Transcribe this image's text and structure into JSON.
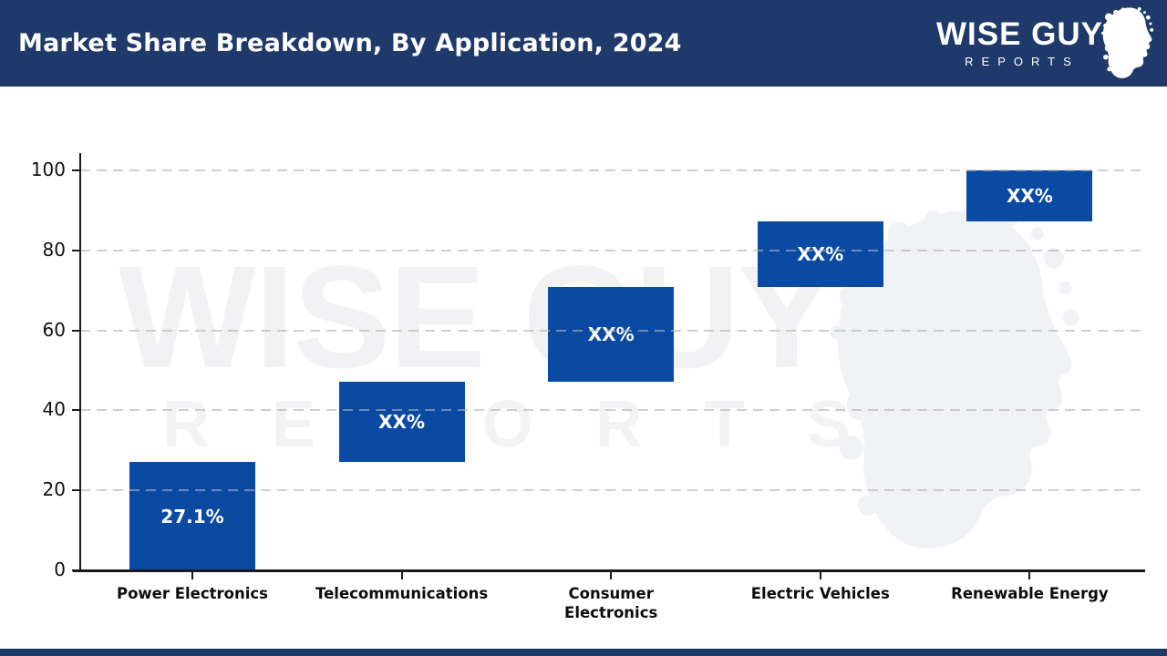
{
  "header": {
    "title": "Market Share Breakdown, By Application, 2024",
    "logo": {
      "brand": "WISE GUY",
      "sub": "REPORTS"
    }
  },
  "watermark": {
    "line1": "WISE GUY",
    "line2": "R E P O R T S"
  },
  "colors": {
    "banner": "#1f3a6a",
    "bar": "#0b4aa2",
    "bar_label": "#ffffff",
    "grid": "#d9d9d9",
    "axis": "#1a1a1a",
    "watermark": "#f2f2f4"
  },
  "chart_data": {
    "type": "bar",
    "subtype": "floating-segment (waterfall-style market share)",
    "title": "Market Share Breakdown, By Application, 2024",
    "categories": [
      "Power Electronics",
      "Telecommunications",
      "Consumer\nElectronics",
      "Electric Vehicles",
      "Renewable Energy"
    ],
    "segments": [
      {
        "category": "Power Electronics",
        "start": 0,
        "end": 27.1,
        "label": "27.1%"
      },
      {
        "category": "Telecommunications",
        "start": 27.1,
        "end": 47.2,
        "label": "XX%"
      },
      {
        "category": "Consumer Electronics",
        "start": 47.2,
        "end": 70.8,
        "label": "XX%"
      },
      {
        "category": "Electric Vehicles",
        "start": 70.8,
        "end": 87.3,
        "label": "XX%"
      },
      {
        "category": "Renewable Energy",
        "start": 87.3,
        "end": 100,
        "label": "XX%"
      }
    ],
    "xlabel": "",
    "ylabel": "",
    "ylim": [
      0,
      100
    ],
    "yticks": [
      0,
      20,
      40,
      60,
      80,
      100
    ],
    "grid": "horizontal dashed, drawn over bars",
    "legend": "none"
  }
}
